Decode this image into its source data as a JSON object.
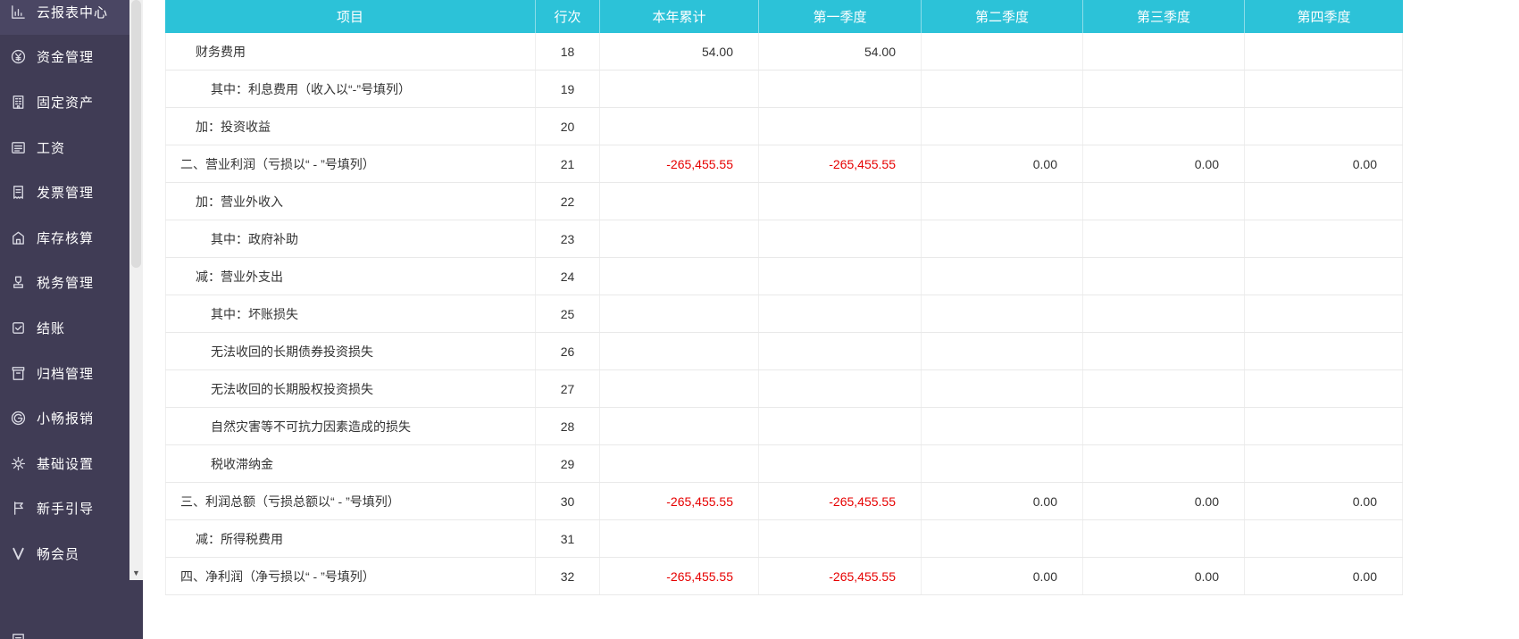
{
  "colors": {
    "sidebar_bg": "#403c55",
    "header_bg": "#2cc2d8",
    "header_text": "#ffffff",
    "negative_value": "#e60000",
    "row_text": "#333333"
  },
  "sidebar": {
    "items": [
      {
        "label": "云报表中心",
        "icon": "chart-icon"
      },
      {
        "label": "资金管理",
        "icon": "money-icon"
      },
      {
        "label": "固定资产",
        "icon": "asset-icon"
      },
      {
        "label": "工资",
        "icon": "salary-icon"
      },
      {
        "label": "发票管理",
        "icon": "invoice-icon"
      },
      {
        "label": "库存核算",
        "icon": "inventory-icon"
      },
      {
        "label": "税务管理",
        "icon": "tax-icon"
      },
      {
        "label": "结账",
        "icon": "closing-icon"
      },
      {
        "label": "归档管理",
        "icon": "archive-icon"
      },
      {
        "label": "小畅报销",
        "icon": "reimburse-icon"
      },
      {
        "label": "基础设置",
        "icon": "settings-icon"
      },
      {
        "label": "新手引导",
        "icon": "guide-icon"
      },
      {
        "label": "畅会员",
        "icon": "member-icon"
      }
    ],
    "partial_item": {
      "label": "",
      "icon": "doc-icon"
    },
    "scrollbar": {
      "down_arrow": "▼"
    }
  },
  "table": {
    "columns": [
      "项目",
      "行次",
      "本年累计",
      "第一季度",
      "第二季度",
      "第三季度",
      "第四季度"
    ],
    "rows": [
      {
        "item": "财务费用",
        "indent": 1,
        "line": "18",
        "values": [
          "54.00",
          "54.00",
          "",
          "",
          ""
        ]
      },
      {
        "item": "其中：利息费用（收入以“-”号填列）",
        "indent": 2,
        "line": "19",
        "values": [
          "",
          "",
          "",
          "",
          ""
        ]
      },
      {
        "item": "加：投资收益",
        "indent": 1,
        "line": "20",
        "values": [
          "",
          "",
          "",
          "",
          ""
        ]
      },
      {
        "item": "二、营业利润（亏损以“ - ”号填列）",
        "indent": 0,
        "line": "21",
        "values": [
          "-265,455.55",
          "-265,455.55",
          "0.00",
          "0.00",
          "0.00"
        ]
      },
      {
        "item": "加：营业外收入",
        "indent": 1,
        "line": "22",
        "values": [
          "",
          "",
          "",
          "",
          ""
        ]
      },
      {
        "item": "其中：政府补助",
        "indent": 2,
        "line": "23",
        "values": [
          "",
          "",
          "",
          "",
          ""
        ]
      },
      {
        "item": "减：营业外支出",
        "indent": 1,
        "line": "24",
        "values": [
          "",
          "",
          "",
          "",
          ""
        ]
      },
      {
        "item": "其中：坏账损失",
        "indent": 2,
        "line": "25",
        "values": [
          "",
          "",
          "",
          "",
          ""
        ]
      },
      {
        "item": "无法收回的长期债券投资损失",
        "indent": 2,
        "line": "26",
        "values": [
          "",
          "",
          "",
          "",
          ""
        ]
      },
      {
        "item": "无法收回的长期股权投资损失",
        "indent": 2,
        "line": "27",
        "values": [
          "",
          "",
          "",
          "",
          ""
        ]
      },
      {
        "item": "自然灾害等不可抗力因素造成的损失",
        "indent": 2,
        "line": "28",
        "values": [
          "",
          "",
          "",
          "",
          ""
        ]
      },
      {
        "item": "税收滞纳金",
        "indent": 2,
        "line": "29",
        "values": [
          "",
          "",
          "",
          "",
          ""
        ]
      },
      {
        "item": "三、利润总额（亏损总额以“ - ”号填列）",
        "indent": 0,
        "line": "30",
        "values": [
          "-265,455.55",
          "-265,455.55",
          "0.00",
          "0.00",
          "0.00"
        ]
      },
      {
        "item": "减：所得税费用",
        "indent": 1,
        "line": "31",
        "values": [
          "",
          "",
          "",
          "",
          ""
        ]
      },
      {
        "item": "四、净利润（净亏损以“ - ”号填列）",
        "indent": 0,
        "line": "32",
        "values": [
          "-265,455.55",
          "-265,455.55",
          "0.00",
          "0.00",
          "0.00"
        ]
      }
    ]
  }
}
